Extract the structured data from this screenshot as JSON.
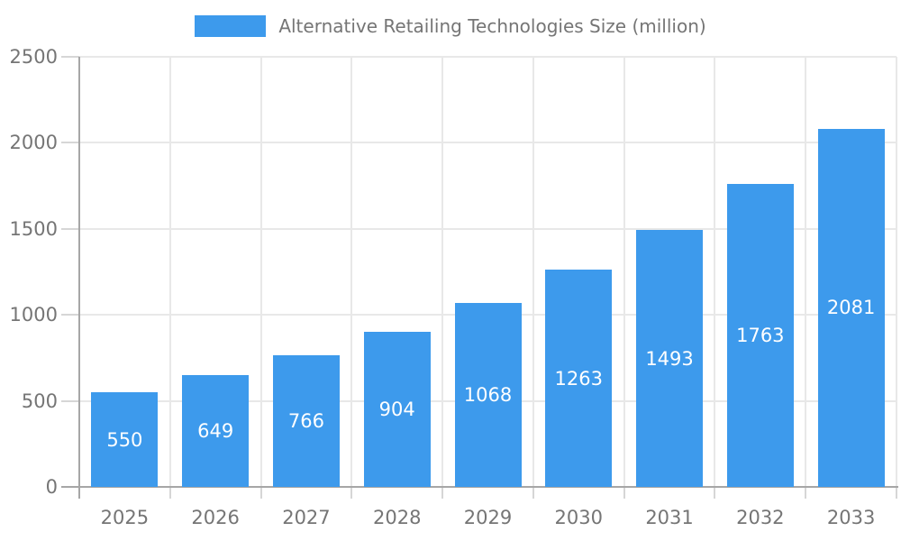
{
  "legend": {
    "label": "Alternative Retailing Technologies Size (million)"
  },
  "colors": {
    "bar": "#3D9AEC",
    "bar_value_text": "#FFFFFF",
    "axis_text": "#757575",
    "axis_line": "#A6A6A6",
    "gridline": "#E8E8E8",
    "tick": "#D6D6D6"
  },
  "chart_data": {
    "type": "bar",
    "title": "Alternative Retailing Technologies Size (million)",
    "categories": [
      "2025",
      "2026",
      "2027",
      "2028",
      "2029",
      "2030",
      "2031",
      "2032",
      "2033"
    ],
    "values": [
      550,
      649,
      766,
      904,
      1068,
      1263,
      1493,
      1763,
      2081
    ],
    "series": [
      {
        "name": "Alternative Retailing Technologies Size (million)",
        "values": [
          550,
          649,
          766,
          904,
          1068,
          1263,
          1493,
          1763,
          2081
        ]
      }
    ],
    "xlabel": "",
    "ylabel": "",
    "ylim": [
      0,
      2500
    ],
    "yticks": [
      0,
      500,
      1000,
      1500,
      2000,
      2500
    ],
    "grid": true,
    "legend_position": "top",
    "bar_labels": "inside-center"
  }
}
